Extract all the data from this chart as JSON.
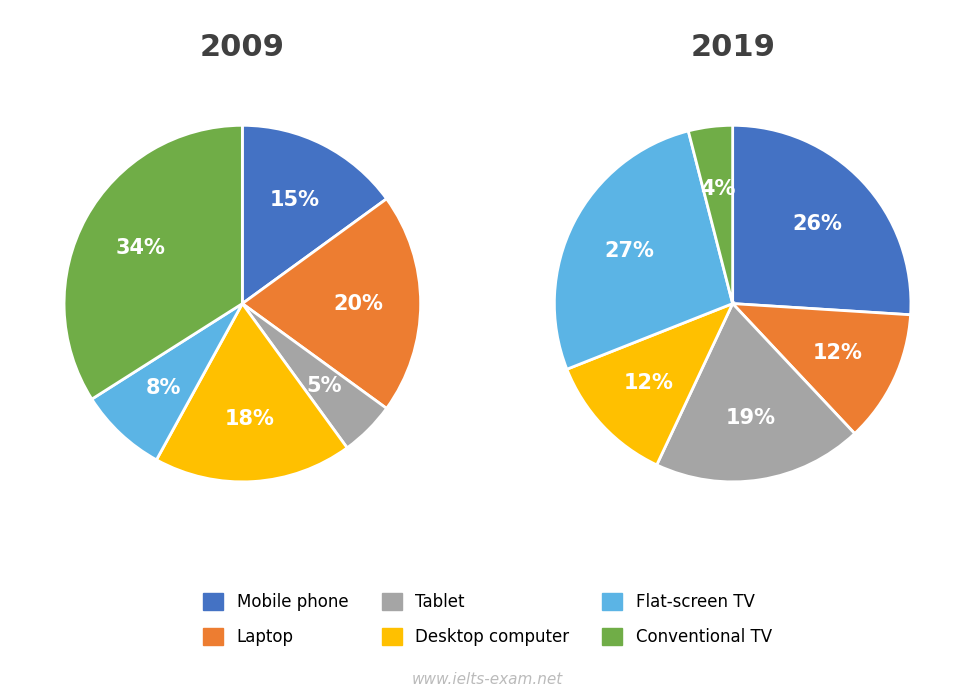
{
  "year2009": {
    "title": "2009",
    "labels": [
      "Mobile phone",
      "Laptop",
      "Tablet",
      "Desktop computer",
      "Flat-screen TV",
      "Conventional TV"
    ],
    "values": [
      15,
      20,
      5,
      18,
      8,
      34
    ],
    "colors": [
      "#4472C4",
      "#ED7D31",
      "#A5A5A5",
      "#FFC000",
      "#5BB4E5",
      "#70AD47"
    ],
    "startangle": 90,
    "pct_labels": [
      "15%",
      "20%",
      "5%",
      "18%",
      "8%",
      "34%"
    ],
    "pct_distance": 0.65
  },
  "year2019": {
    "title": "2019",
    "labels": [
      "Mobile phone",
      "Laptop",
      "Tablet",
      "Desktop computer",
      "Flat-screen TV",
      "Conventional TV"
    ],
    "values": [
      26,
      12,
      19,
      12,
      27,
      4
    ],
    "colors": [
      "#4472C4",
      "#ED7D31",
      "#A5A5A5",
      "#FFC000",
      "#5BB4E5",
      "#70AD47"
    ],
    "startangle": 90,
    "pct_labels": [
      "26%",
      "12%",
      "19%",
      "12%",
      "27%",
      "4%"
    ],
    "pct_distance": 0.65
  },
  "legend_labels": [
    "Mobile phone",
    "Laptop",
    "Tablet",
    "Desktop computer",
    "Flat-screen TV",
    "Conventional TV"
  ],
  "legend_colors": [
    "#4472C4",
    "#ED7D31",
    "#A5A5A5",
    "#FFC000",
    "#5BB4E5",
    "#70AD47"
  ],
  "title_fontsize": 22,
  "label_fontsize": 15,
  "watermark": "www.ielts-exam.net",
  "background_color": "#FFFFFF",
  "title_color": "#404040"
}
